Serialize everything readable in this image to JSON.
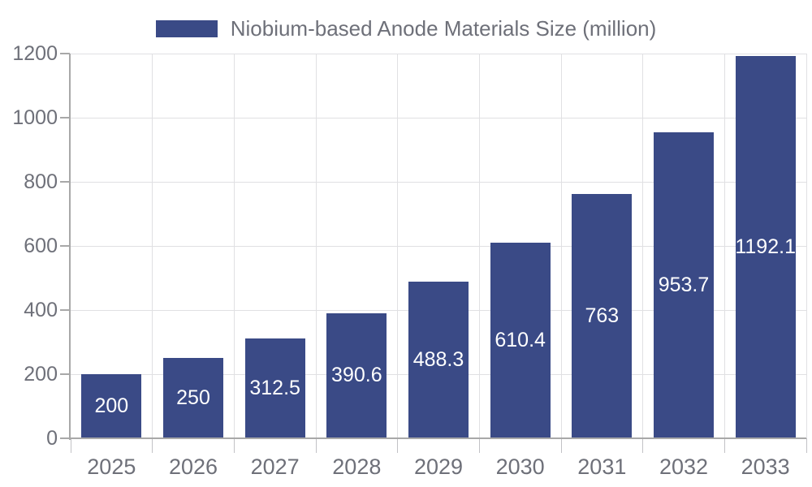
{
  "colors": {
    "bar": "#3A4A86",
    "grid": "#E0E0E3",
    "axis_line": "#A8A8A8",
    "tick": "#C2C2C6",
    "text": "#6E7079",
    "value_text": "#FFFFFF",
    "background": "#FFFFFF"
  },
  "chart_data": {
    "type": "bar",
    "title": "",
    "legend_label": "Niobium-based Anode Materials Size (million)",
    "legend_position": "top-center",
    "categories": [
      "2025",
      "2026",
      "2027",
      "2028",
      "2029",
      "2030",
      "2031",
      "2032",
      "2033"
    ],
    "values": [
      200,
      250,
      312.5,
      390.6,
      488.3,
      610.4,
      763,
      953.7,
      1192.1
    ],
    "value_labels": [
      "200",
      "250",
      "312.5",
      "390.6",
      "488.3",
      "610.4",
      "763",
      "953.7",
      "1192.1"
    ],
    "xlabel": "",
    "ylabel": "",
    "ylim": [
      0,
      1200
    ],
    "yticks": [
      0,
      200,
      400,
      600,
      800,
      1000,
      1200
    ],
    "grid": true,
    "grid_vertical": true
  }
}
